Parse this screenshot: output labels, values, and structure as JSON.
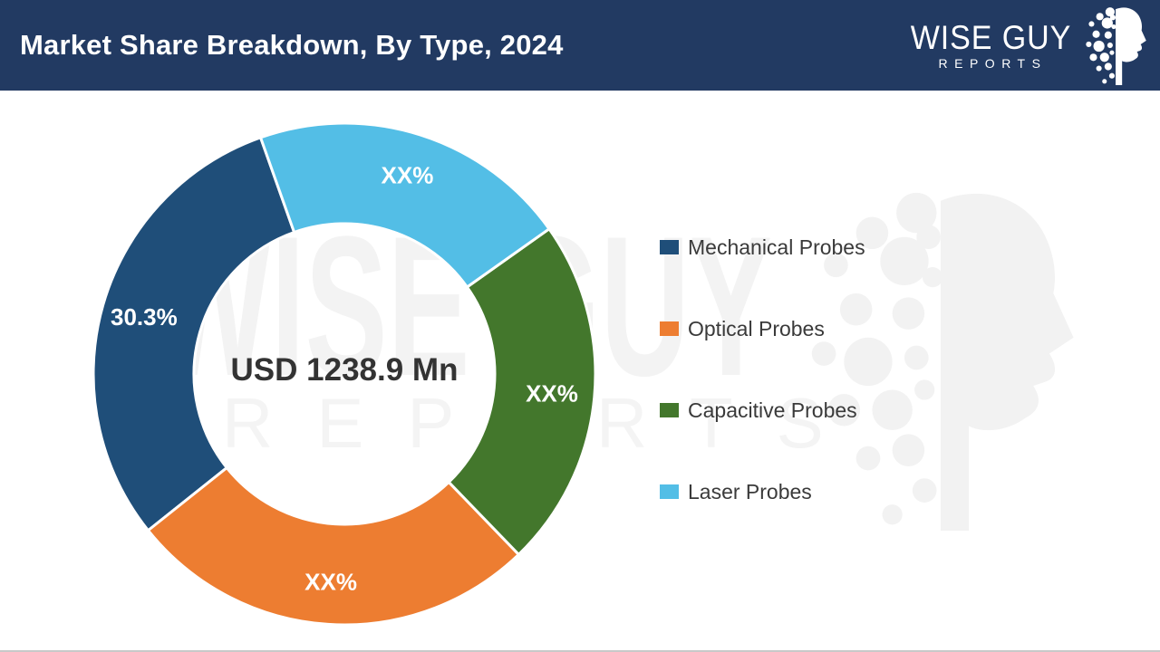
{
  "header": {
    "title": "Market Share Breakdown, By Type, 2024",
    "background_color": "#223A62",
    "logo": {
      "wordmark": "WISE GUY",
      "subtitle": "REPORTS"
    }
  },
  "watermark": {
    "wordmark": "WISE GUY",
    "subtitle": "REPORTS"
  },
  "chart_data": {
    "type": "pie",
    "variant": "donut",
    "title": "Market Share Breakdown, By Type, 2024",
    "center_label": "USD 1238.9 Mn",
    "start_angle_deg": 109.5,
    "direction": "counterclockwise",
    "legend_position": "right",
    "segments": [
      {
        "label": "Mechanical Probes",
        "display_value": "30.3%",
        "value_pct": 30.3,
        "color": "#1F4E79"
      },
      {
        "label": "Optical Probes",
        "display_value": "XX%",
        "value_pct": 26.5,
        "color": "#ED7D31"
      },
      {
        "label": "Capacitive Probes",
        "display_value": "XX%",
        "value_pct": 22.6,
        "color": "#43772C"
      },
      {
        "label": "Laser Probes",
        "display_value": "XX%",
        "value_pct": 20.6,
        "color": "#53BEE6"
      }
    ]
  }
}
